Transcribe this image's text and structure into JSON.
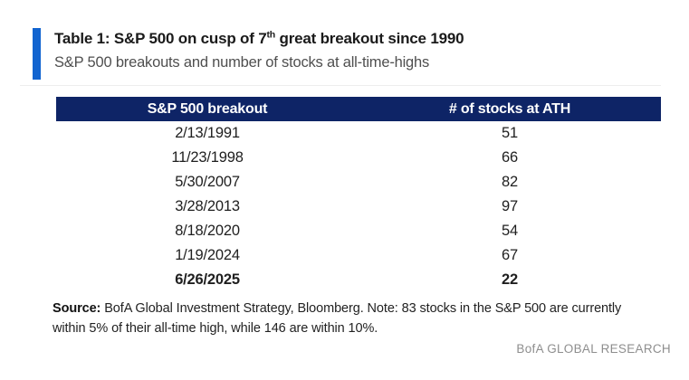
{
  "colors": {
    "accent_blue": "#1164d0",
    "header_navy": "#0e2466",
    "title_text": "#1a1a1a",
    "subtitle_text": "#4f4f4f",
    "body_text": "#1f1f1f",
    "brand_text": "#8e8e8e"
  },
  "header": {
    "title_pre": "Table 1: S&P 500 on cusp of 7",
    "title_sup": "th",
    "title_post": " great breakout since 1990",
    "subtitle": "S&P 500 breakouts and number of stocks at all-time-highs"
  },
  "table": {
    "columns": [
      "S&P 500 breakout",
      "# of stocks at ATH"
    ],
    "rows": [
      {
        "date": "2/13/1991",
        "value": "51"
      },
      {
        "date": "11/23/1998",
        "value": "66"
      },
      {
        "date": "5/30/2007",
        "value": "82"
      },
      {
        "date": "3/28/2013",
        "value": "97"
      },
      {
        "date": "8/18/2020",
        "value": "54"
      },
      {
        "date": "1/19/2024",
        "value": "67"
      },
      {
        "date": "6/26/2025",
        "value": "22"
      }
    ]
  },
  "footnote": {
    "source_label": "Source:",
    "source_text": "BofA Global Investment Strategy, Bloomberg. Note: 83 stocks in the S&P 500 are currently within 5% of their all-time high, while 146 are within 10%."
  },
  "brand": "BofA GLOBAL RESEARCH",
  "chart_data": {
    "type": "table",
    "title": "Table 1: S&P 500 on cusp of 7th great breakout since 1990",
    "subtitle": "S&P 500 breakouts and number of stocks at all-time-highs",
    "columns": [
      "S&P 500 breakout",
      "# of stocks at ATH"
    ],
    "rows": [
      [
        "2/13/1991",
        51
      ],
      [
        "11/23/1998",
        66
      ],
      [
        "5/30/2007",
        82
      ],
      [
        "3/28/2013",
        97
      ],
      [
        "8/18/2020",
        54
      ],
      [
        "1/19/2024",
        67
      ],
      [
        "6/26/2025",
        22
      ]
    ],
    "highlighted_row": "6/26/2025",
    "note": "83 stocks in the S&P 500 are currently within 5% of their all-time high, while 146 are within 10%",
    "source": "BofA Global Investment Strategy, Bloomberg"
  }
}
